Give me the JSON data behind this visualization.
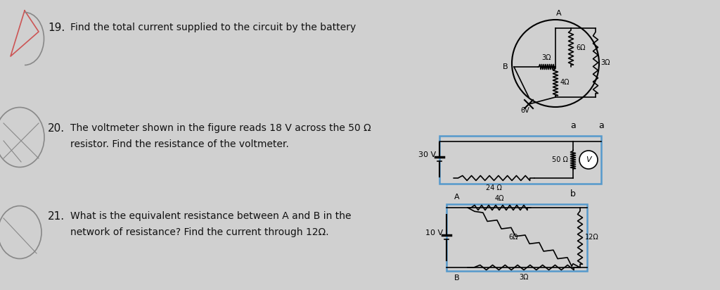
{
  "background_color": "#d0d0d0",
  "q19_num": "19.",
  "q19_text": "Find the total current supplied to the circuit by the battery",
  "q20_num": "20.",
  "q20_line1": "The voltmeter shown in the figure reads 18 V across the 50 Ω",
  "q20_line2": "resistor. Find the resistance of the voltmeter.",
  "q21_num": "21.",
  "q21_line1": "What is the equivalent resistance between A and B in the",
  "q21_line2": "network of resistance? Find the current through 12Ω.",
  "figsize": [
    10.24,
    4.12
  ],
  "dpi": 100,
  "text_color": "#111111",
  "circ_color": "#888888"
}
